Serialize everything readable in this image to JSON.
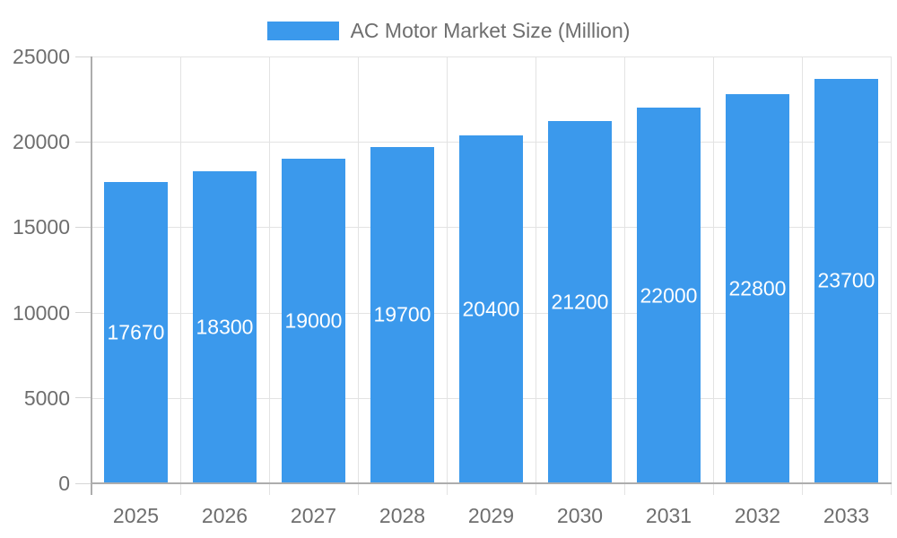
{
  "legend": {
    "label": "AC Motor Market Size (Million)"
  },
  "colors": {
    "bar": "#3B99EC",
    "grid": "#E3E3E3",
    "tick": "#D6D6D6",
    "axis": "#ADADAD",
    "text": "#6E6E6E",
    "label_text": "#FFFFFF",
    "background": "#FFFFFF"
  },
  "chart_data": {
    "type": "bar",
    "series_name": "AC Motor Market Size (Million)",
    "categories": [
      "2025",
      "2026",
      "2027",
      "2028",
      "2029",
      "2030",
      "2031",
      "2032",
      "2033"
    ],
    "values": [
      17670,
      18300,
      19000,
      19700,
      20400,
      21200,
      22000,
      22800,
      23700
    ],
    "yticks": [
      "0",
      "5000",
      "10000",
      "15000",
      "20000",
      "25000"
    ],
    "ylim": [
      0,
      25000
    ],
    "ytick_interval": 5000,
    "grid": "horizontal and vertical gridlines on",
    "legend_position": "top-center",
    "data_labels": "values shown inside bars, vertically centered, white"
  }
}
